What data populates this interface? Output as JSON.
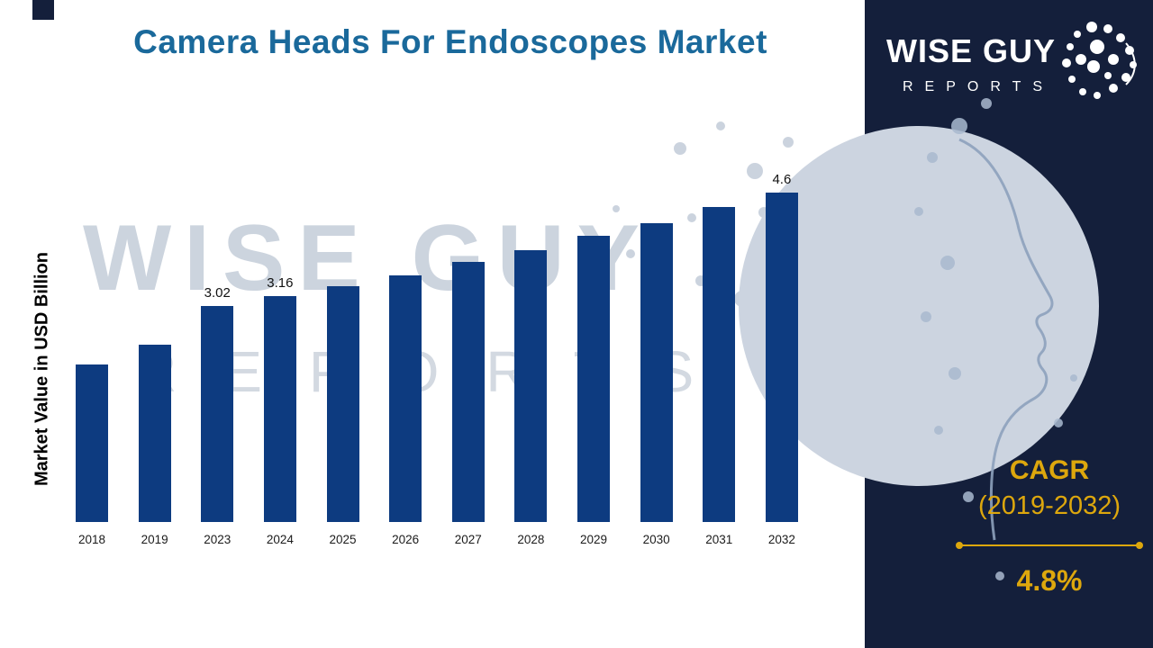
{
  "title": "Camera Heads For Endoscopes Market",
  "y_axis_label": "Market Value in USD Billion",
  "chart_data": {
    "type": "bar",
    "title": "Camera Heads For Endoscopes Market",
    "ylabel": "Market Value in USD Billion",
    "xlabel": "",
    "categories": [
      "2018",
      "2019",
      "2023",
      "2024",
      "2025",
      "2026",
      "2027",
      "2028",
      "2029",
      "2030",
      "2031",
      "2032"
    ],
    "values": [
      2.2,
      2.48,
      3.02,
      3.16,
      3.3,
      3.45,
      3.63,
      3.8,
      4.0,
      4.18,
      4.4,
      4.6
    ],
    "bar_labels": [
      "",
      "",
      "3.02",
      "3.16",
      "",
      "",
      "",
      "",
      "",
      "",
      "",
      "4.6"
    ],
    "ylim": [
      0,
      5
    ],
    "grid": false,
    "legend": "none",
    "bar_color": "#0d3b80"
  },
  "logo": {
    "name_line": "WISE GUY",
    "reports_line": "REPORTS"
  },
  "watermark": {
    "line1": "WISE GUY",
    "line2": "REPORTS"
  },
  "cagr": {
    "label": "CAGR",
    "range": "(2019-2032)",
    "value": "4.8%"
  },
  "colors": {
    "title_blue": "#1a699b",
    "bar_navy": "#0d3b80",
    "panel_navy": "#141f3b",
    "accent_gold": "#dda70d",
    "watermark_gray": "#ccd4de"
  }
}
